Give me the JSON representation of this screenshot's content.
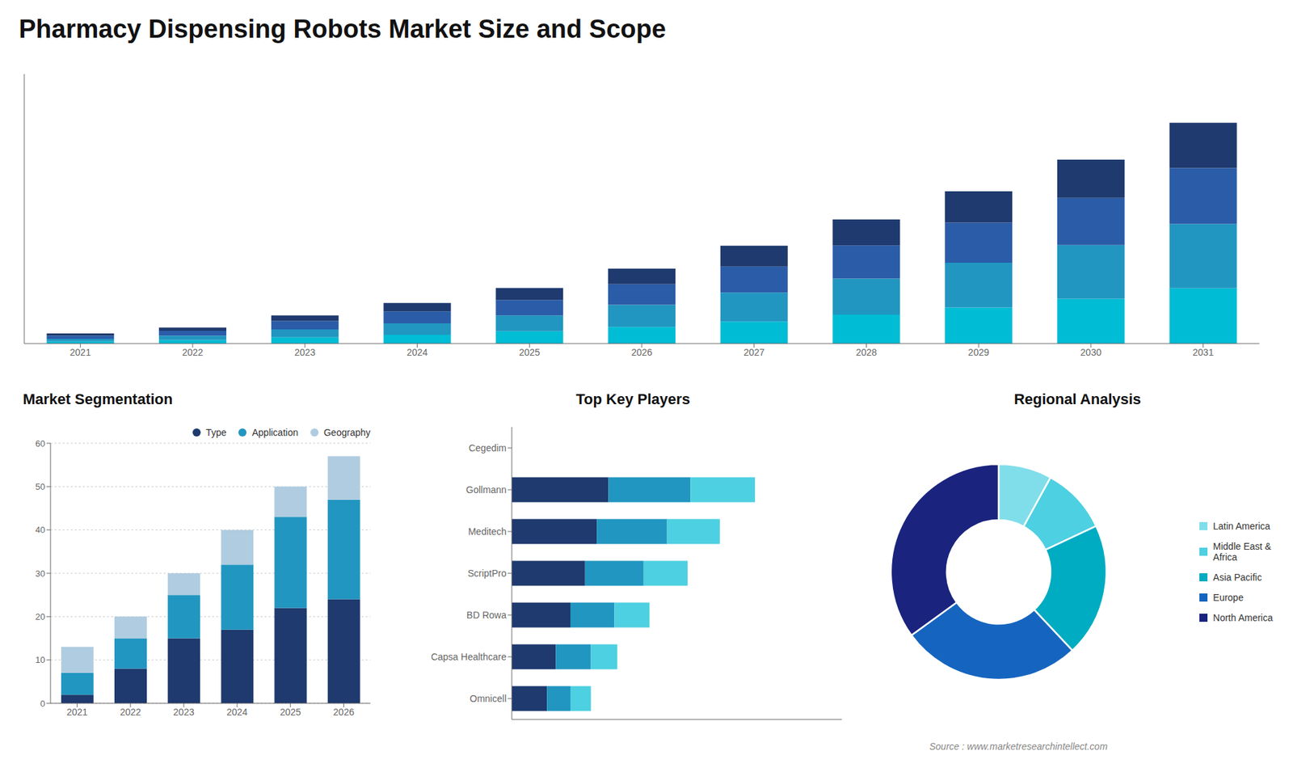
{
  "chart_data": [
    {
      "type": "bar",
      "title": "Pharmacy Dispensing Robots Market Size and Scope",
      "stacked": true,
      "categories": [
        "2021",
        "2022",
        "2023",
        "2024",
        "2025",
        "2026",
        "2027",
        "2028",
        "2029",
        "2030",
        "2031"
      ],
      "series": [
        {
          "color": "#00bcd4",
          "values": [
            1.2,
            2.0,
            3.5,
            5.0,
            7.0,
            9.5,
            12.5,
            16.5,
            20.5,
            25.5,
            31.5
          ]
        },
        {
          "color": "#2196c0",
          "values": [
            1.5,
            2.5,
            4.5,
            6.5,
            9.0,
            12.5,
            16.5,
            20.5,
            25.5,
            30.5,
            36.5
          ]
        },
        {
          "color": "#2a5ca8",
          "values": [
            1.8,
            2.8,
            4.8,
            6.8,
            8.8,
            11.8,
            14.8,
            18.8,
            22.8,
            26.8,
            31.8
          ]
        },
        {
          "color": "#1e3a6e",
          "values": [
            1.2,
            1.8,
            3.2,
            4.8,
            6.8,
            8.8,
            11.8,
            14.8,
            17.8,
            21.8,
            25.8
          ]
        }
      ],
      "ylim": [
        0,
        153.232
      ],
      "tick_labels": "x",
      "grid": false
    },
    {
      "type": "bar",
      "title": "Market Segmentation",
      "stacked": true,
      "categories": [
        "2021",
        "2022",
        "2023",
        "2024",
        "2025",
        "2026"
      ],
      "series": [
        {
          "name": "Type",
          "color": "#1e3a6e",
          "values": [
            2,
            8,
            15,
            17,
            22,
            24
          ]
        },
        {
          "name": "Application",
          "color": "#2196c0",
          "values": [
            5,
            7,
            10,
            15,
            21,
            23
          ]
        },
        {
          "name": "Geography",
          "color": "#b0cce0",
          "values": [
            6,
            5,
            5,
            8,
            7,
            10
          ]
        }
      ],
      "ylim": [
        0,
        60
      ],
      "yticks": [
        0,
        10,
        20,
        30,
        40,
        50,
        60
      ],
      "grid": true,
      "legend": "upper right"
    },
    {
      "type": "bar",
      "title": "Top Key Players",
      "orientation": "horizontal",
      "stacked": true,
      "categories": [
        "Cegedim",
        "Gollmann",
        "Meditech",
        "ScriptPro",
        "BD Rowa",
        "Capsa Healthcare",
        "Omnicell"
      ],
      "series": [
        {
          "color": "#1e3a6e",
          "values": [
            0,
            33,
            29,
            25,
            20,
            15,
            12
          ]
        },
        {
          "color": "#2196c0",
          "values": [
            0,
            28,
            24,
            20,
            15,
            12,
            8
          ]
        },
        {
          "color": "#4dd0e1",
          "values": [
            0,
            22,
            18,
            15,
            12,
            9,
            7
          ]
        }
      ],
      "xlim": [
        0,
        112.631
      ],
      "tick_labels": "y",
      "grid": false
    },
    {
      "type": "donut",
      "title": "Regional Analysis",
      "categories": [
        "Latin America",
        "Middle East &\nAfrica",
        "Asia Pacific",
        "Europe",
        "North America"
      ],
      "values": [
        8,
        10,
        20,
        27,
        35
      ],
      "colors": [
        "#80deea",
        "#4dd0e1",
        "#00acc1",
        "#1565c0",
        "#1a237e"
      ],
      "legend": "right",
      "annotations": [
        "Source : www.marketresearchintellect.com"
      ]
    }
  ]
}
